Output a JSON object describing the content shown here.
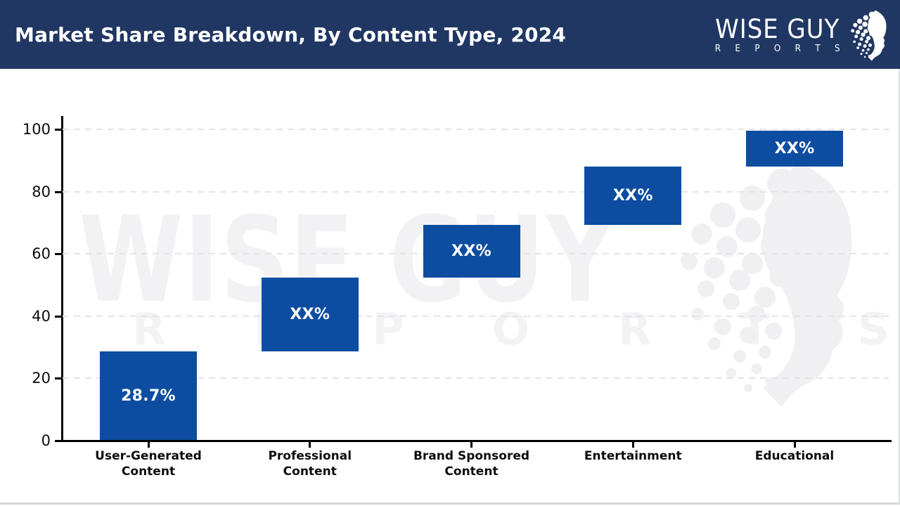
{
  "header": {
    "title": "Market Share Breakdown, By Content Type, 2024",
    "logo": {
      "line1": "WISE GUY",
      "line2": "R E P O R T S"
    }
  },
  "watermark": {
    "line1": "WISE GUY",
    "line2": "R E P O R T S"
  },
  "colors": {
    "header_bg": "#203763",
    "bar": "#0d4da1",
    "bar_label": "#ffffff",
    "gridline": "#e4e4e6",
    "axis": "#000000",
    "watermark": "#f2f2f4"
  },
  "chart_data": {
    "type": "bar",
    "subtype": "waterfall",
    "title": "Market Share Breakdown, By Content Type, 2024",
    "xlabel": "",
    "ylabel": "",
    "ylim": [
      0,
      105
    ],
    "yticks": [
      0,
      20,
      40,
      60,
      80,
      100
    ],
    "grid": "dashed-horizontal",
    "legend": "none",
    "bar_color": "#0d4da1",
    "categories": [
      "User-Generated\nContent",
      "Professional\nContent",
      "Brand Sponsored\nContent",
      "Entertainment",
      "Educational"
    ],
    "segments": [
      {
        "category": "User-Generated Content",
        "start": 0,
        "end": 28.7,
        "label": "28.7%"
      },
      {
        "category": "Professional Content",
        "start": 28.7,
        "end": 52.4,
        "label": "XX%"
      },
      {
        "category": "Brand Sponsored Content",
        "start": 52.4,
        "end": 69.2,
        "label": "XX%"
      },
      {
        "category": "Entertainment",
        "start": 69.2,
        "end": 88.1,
        "label": "XX%"
      },
      {
        "category": "Educational",
        "start": 88.1,
        "end": 99.5,
        "label": "XX%"
      }
    ]
  }
}
